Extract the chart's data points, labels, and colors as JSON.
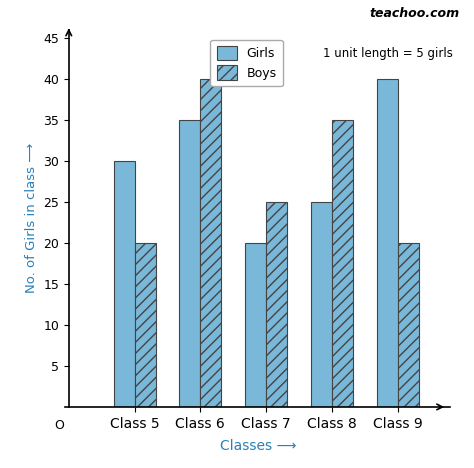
{
  "classes": [
    "Class 5",
    "Class 6",
    "Class 7",
    "Class 8",
    "Class 9"
  ],
  "girls": [
    30,
    35,
    20,
    25,
    40
  ],
  "boys": [
    20,
    40,
    25,
    35,
    20
  ],
  "girls_color": "#7ab8d9",
  "boys_color": "#7ab8d9",
  "bar_edge_color": "#444444",
  "ylim": [
    0,
    46
  ],
  "yticks": [
    5,
    10,
    15,
    20,
    25,
    30,
    35,
    40,
    45
  ],
  "xlabel": "Classes ⟶",
  "ylabel": "No. of Girls in class ⟶",
  "xlabel_color": "#2980b9",
  "ylabel_color": "#2980b9",
  "annotation_text": "1 unit length = 5 girls",
  "watermark": "teachoo.com",
  "origin_label": "O",
  "bar_width": 0.32,
  "legend_girls": "Girls",
  "legend_boys": "Boys"
}
